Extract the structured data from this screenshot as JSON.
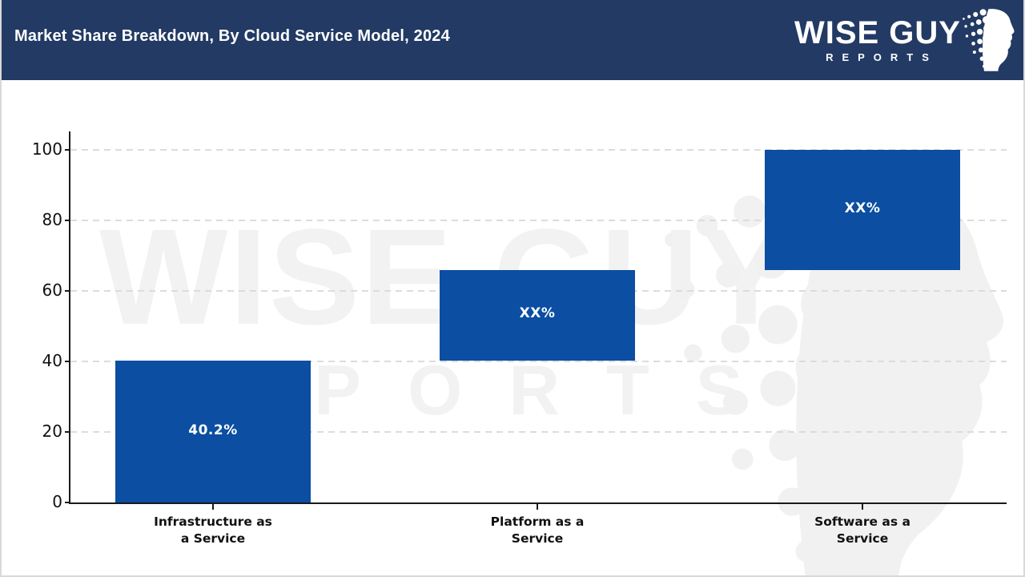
{
  "header": {
    "title": "Market Share Breakdown, By Cloud Service Model, 2024",
    "bg_color": "#223A64",
    "logo": {
      "wordmark": "WISE GUY",
      "subtext": "REPORTS"
    }
  },
  "watermark": {
    "line1": "WISE GUY",
    "line2": "REPORTS"
  },
  "chart_data": {
    "type": "bar",
    "subtype": "waterfall",
    "title": "Market Share Breakdown, By Cloud Service Model, 2024",
    "categories": [
      "Infrastructure as\na Service",
      "Platform as a\nService",
      "Software as a\nService"
    ],
    "segments": [
      {
        "category": "Infrastructure as a Service",
        "label": "40.2%",
        "start": 0,
        "end": 40.2
      },
      {
        "category": "Platform as a Service",
        "label": "XX%",
        "start": 40.2,
        "end": 66
      },
      {
        "category": "Software as a Service",
        "label": "XX%",
        "start": 66,
        "end": 100
      }
    ],
    "yticks": [
      0,
      20,
      40,
      60,
      80,
      100
    ],
    "ylim": [
      0,
      106
    ],
    "xlabel": "",
    "ylabel": "",
    "bar_color": "#0B4EA2",
    "label_color": "#ffffff",
    "grid": "horizontal-dashed",
    "legend": "none"
  }
}
